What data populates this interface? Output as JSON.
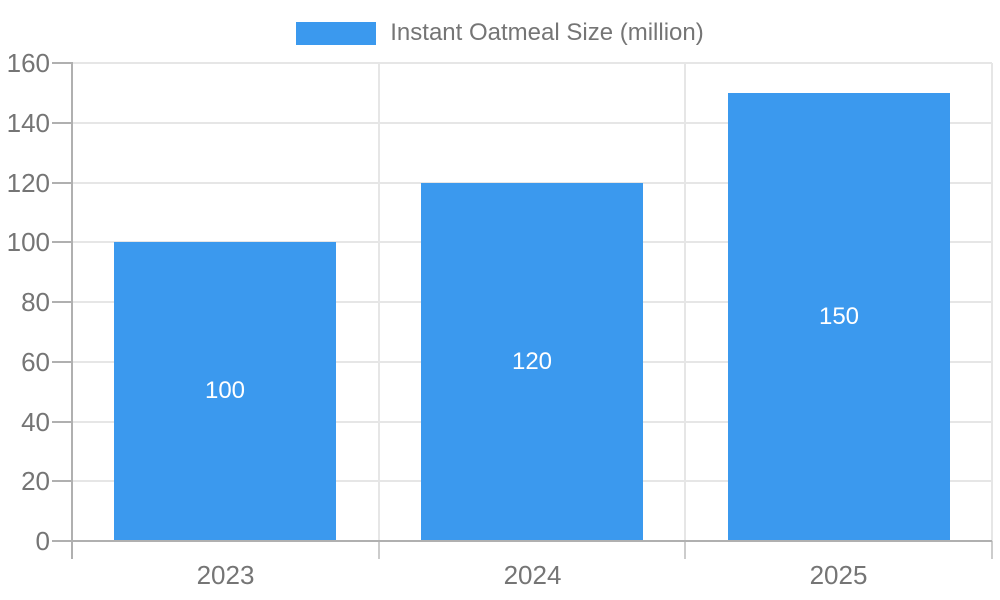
{
  "legend": {
    "label": "Instant Oatmeal Size (million)",
    "position": "top"
  },
  "chart_data": {
    "type": "bar",
    "title": "Instant Oatmeal Size (million)",
    "categories": [
      "2023",
      "2024",
      "2025"
    ],
    "series": [
      {
        "name": "Instant Oatmeal Size (million)",
        "values": [
          100,
          120,
          150
        ]
      }
    ],
    "data_labels": [
      "100",
      "120",
      "150"
    ],
    "xlabel": "",
    "ylabel": "",
    "ylim": [
      0,
      160
    ],
    "yticks": [
      0,
      20,
      40,
      60,
      80,
      100,
      120,
      140,
      160
    ],
    "grid": true,
    "legend_position": "top",
    "colors": {
      "bar": "#3b99ee",
      "data_label": "#ffffff",
      "axis_text": "#757575",
      "grid_line": "#e6e6e6",
      "axis_line": "#b0b0b0",
      "tick_line": "#cccccc",
      "background": "#ffffff"
    }
  }
}
